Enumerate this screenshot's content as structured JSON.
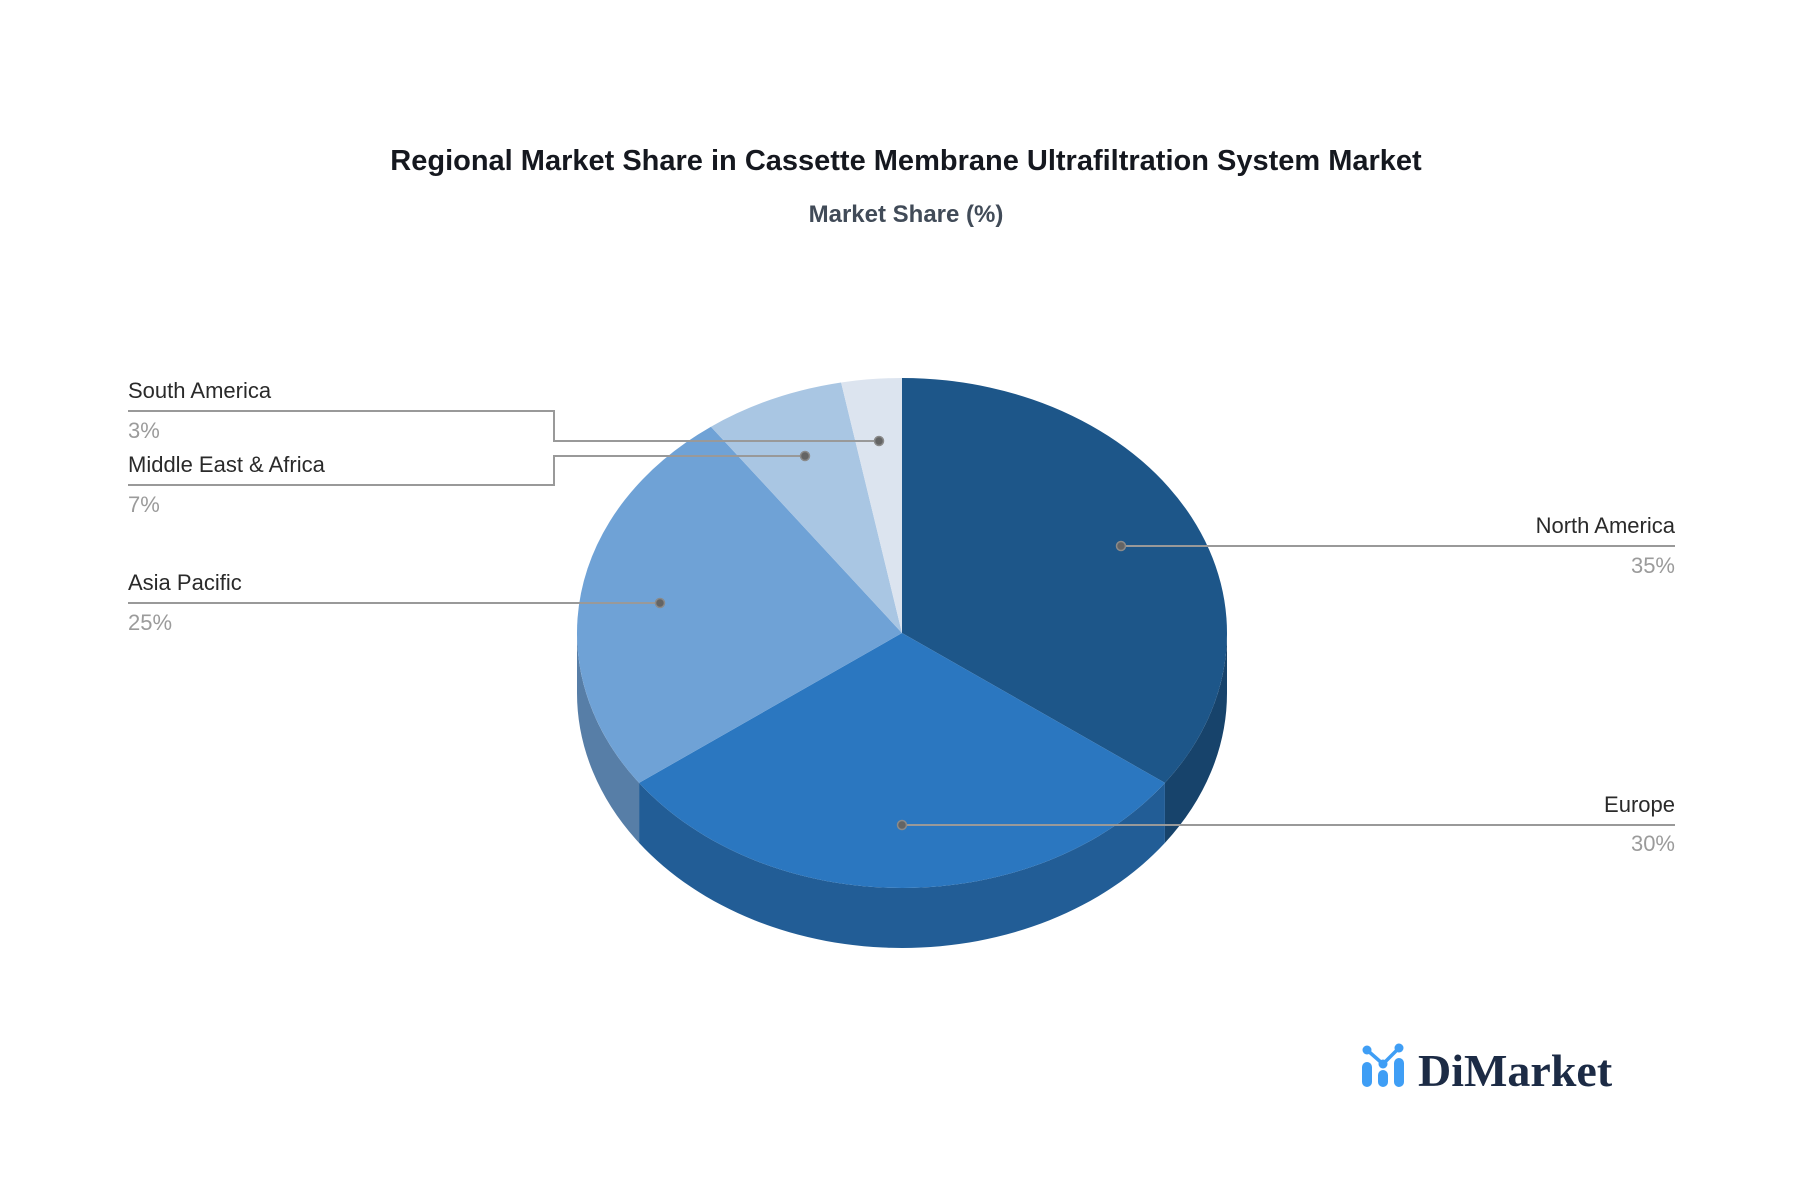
{
  "chart_data": {
    "type": "pie",
    "title": "Regional Market Share in Cassette Membrane Ultrafiltration System Market",
    "subtitle": "Market Share (%)",
    "unit": "%",
    "direction": "clockwise",
    "start_angle_deg": 0,
    "style_3d": true,
    "background": "#ffffff",
    "slices": [
      {
        "label": "North America",
        "value": 35,
        "pct_label": "35%",
        "color": "#1d5689"
      },
      {
        "label": "Europe",
        "value": 30,
        "pct_label": "30%",
        "color": "#2b77c0"
      },
      {
        "label": "Asia Pacific",
        "value": 25,
        "pct_label": "25%",
        "color": "#6fa2d6"
      },
      {
        "label": "Middle East & Africa",
        "value": 7,
        "pct_label": "7%",
        "color": "#a9c6e3"
      },
      {
        "label": "South America",
        "value": 3,
        "pct_label": "3%",
        "color": "#dce4ef"
      }
    ],
    "callout_color": "#999999"
  },
  "watermark": {
    "text": "DiMarket",
    "text_color": "#1c2b45",
    "icon": "bar-line-chart-icon",
    "icon_color": "#3f9ef5"
  }
}
